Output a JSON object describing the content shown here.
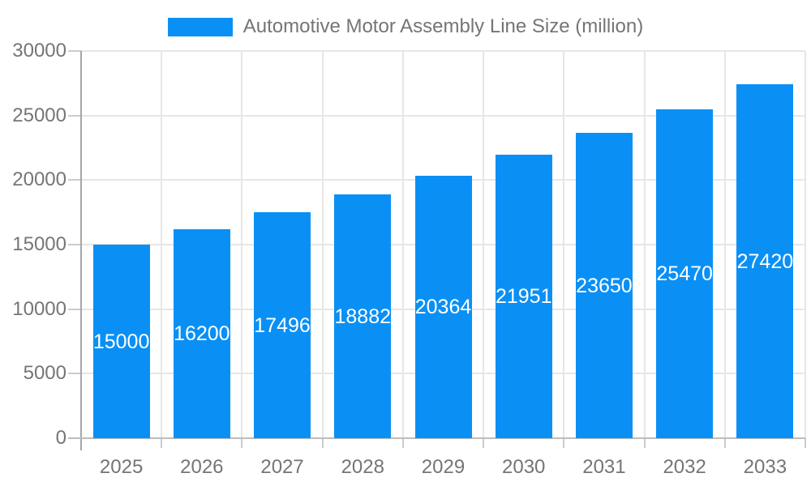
{
  "chart_data": {
    "type": "bar",
    "legend": "Automotive Motor Assembly Line Size (million)",
    "categories": [
      "2025",
      "2026",
      "2027",
      "2028",
      "2029",
      "2030",
      "2031",
      "2032",
      "2033"
    ],
    "values": [
      15000,
      16200,
      17496,
      18882,
      20364,
      21951,
      23650,
      25470,
      27420
    ],
    "title": "",
    "xlabel": "",
    "ylabel": "",
    "ylim": [
      0,
      30000
    ],
    "yticks": [
      0,
      5000,
      10000,
      15000,
      20000,
      25000,
      30000
    ],
    "grid": true,
    "legend_position": "top",
    "value_labels_inside_bars": true,
    "colors": {
      "bar": "#0a90f5",
      "grid": "#e6e6e6",
      "axis_y": "#a6a6a6",
      "axis_x": "#bdbdbd",
      "tick": "#cccccc",
      "axis_text": "#757575",
      "value_text": "#ffffff",
      "background": "#ffffff"
    }
  }
}
